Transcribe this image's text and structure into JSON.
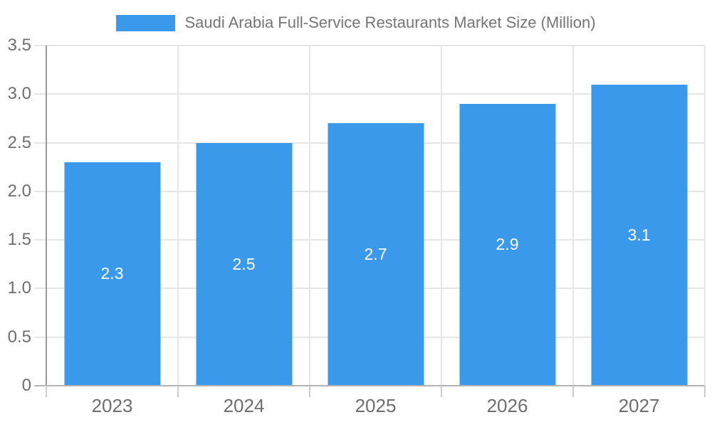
{
  "chart_data": {
    "type": "bar",
    "title": "Saudi Arabia Full-Service Restaurants Market Size (Million)",
    "series_name": "Saudi Arabia Full-Service Restaurants Market Size (Million)",
    "categories": [
      "2023",
      "2024",
      "2025",
      "2026",
      "2027"
    ],
    "values": [
      2.3,
      2.5,
      2.7,
      2.9,
      3.1
    ],
    "value_labels": [
      "2.3",
      "2.5",
      "2.7",
      "2.9",
      "3.1"
    ],
    "xlabel": "",
    "ylabel": "",
    "ylim": [
      0,
      3.5
    ],
    "yticks": [
      0,
      0.5,
      1,
      1.5,
      2,
      2.5,
      3,
      3.5
    ],
    "ytick_labels": [
      "0",
      "0.5",
      "1.0",
      "1.5",
      "2.0",
      "2.5",
      "3.0",
      "3.5"
    ],
    "grid": true,
    "legend_position": "top",
    "bar_width_ratio": 0.73
  },
  "colors": {
    "bar": "#3B99EC",
    "legend_text": "#757575",
    "axis_text": "#6E6E6E",
    "gridline": "#E6E6E6",
    "y_axis_line": "#999999",
    "x_axis_line": "#B3B3B3",
    "x_tick": "#CCCCCC",
    "value_label": "#FFFFFF",
    "background": "#FFFFFF"
  }
}
